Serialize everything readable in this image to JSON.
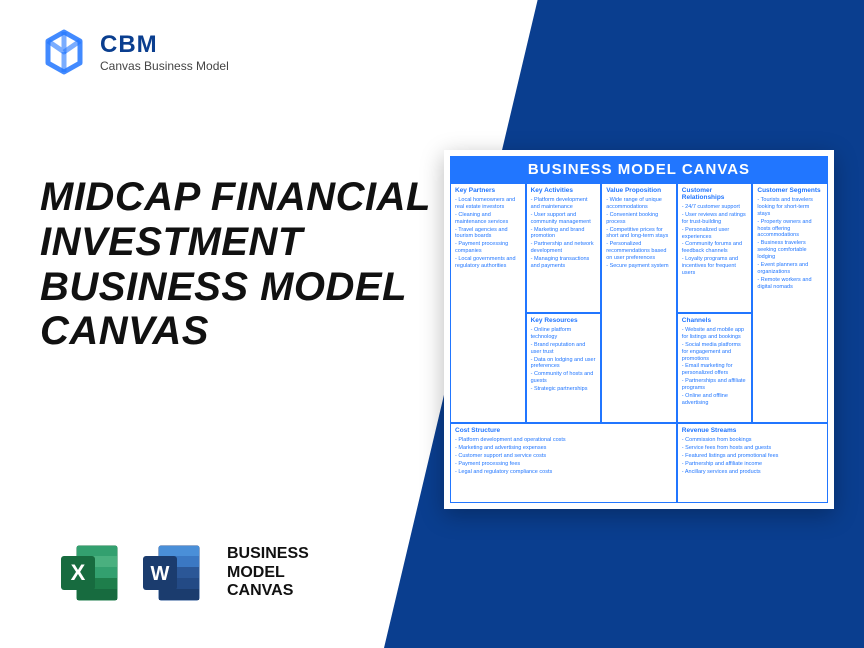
{
  "brand": {
    "name": "CBM",
    "sub": "Canvas Business Model"
  },
  "title": "MIDCAP FINANCIAL INVESTMENT BUSINESS MODEL CANVAS",
  "fileLabel": "BUSINESS MODEL CANVAS",
  "canvas": {
    "header": "BUSINESS MODEL CANVAS",
    "blocks": {
      "kp": {
        "title": "Key Partners",
        "items": [
          "Local homeowners and real estate investors",
          "Cleaning and maintenance services",
          "Travel agencies and tourism boards",
          "Payment processing companies",
          "Local governments and regulatory authorities"
        ]
      },
      "ka": {
        "title": "Key Activities",
        "items": [
          "Platform development and maintenance",
          "User support and community management",
          "Marketing and brand promotion",
          "Partnership and network development",
          "Managing transactions and payments"
        ]
      },
      "kr": {
        "title": "Key Resources",
        "items": [
          "Online platform technology",
          "Brand reputation and user trust",
          "Data on lodging and user preferences",
          "Community of hosts and guests",
          "Strategic partnerships"
        ]
      },
      "vp": {
        "title": "Value Proposition",
        "items": [
          "Wide range of unique accommodations",
          "Convenient booking process",
          "Competitive prices for short and long-term stays",
          "Personalized recommendations based on user preferences",
          "Secure payment system"
        ]
      },
      "cr": {
        "title": "Customer Relationships",
        "items": [
          "24/7 customer support",
          "User reviews and ratings for trust-building",
          "Personalized user experiences",
          "Community forums and feedback channels",
          "Loyalty programs and incentives for frequent users"
        ]
      },
      "ch": {
        "title": "Channels",
        "items": [
          "Website and mobile app for listings and bookings",
          "Social media platforms for engagement and promotions",
          "Email marketing for personalized offers",
          "Partnerships and affiliate programs",
          "Online and offline advertising"
        ]
      },
      "cs": {
        "title": "Customer Segments",
        "items": [
          "Tourists and travelers looking for short-term stays",
          "Property owners and hosts offering accommodations",
          "Business travelers seeking comfortable lodging",
          "Event planners and organizations",
          "Remote workers and digital nomads"
        ]
      },
      "cost": {
        "title": "Cost Structure",
        "items": [
          "Platform development and operational costs",
          "Marketing and advertising expenses",
          "Customer support and service costs",
          "Payment processing fees",
          "Legal and regulatory compliance costs"
        ]
      },
      "rev": {
        "title": "Revenue Streams",
        "items": [
          "Commission from bookings",
          "Service fees from hosts and guests",
          "Featured listings and promotional fees",
          "Partnership and affiliate income",
          "Ancillary services and products"
        ]
      }
    }
  },
  "colors": {
    "accent": "#2176ff",
    "darkblue": "#0a3e8f",
    "excel": "#1e7e4b",
    "word": "#2b5797"
  }
}
